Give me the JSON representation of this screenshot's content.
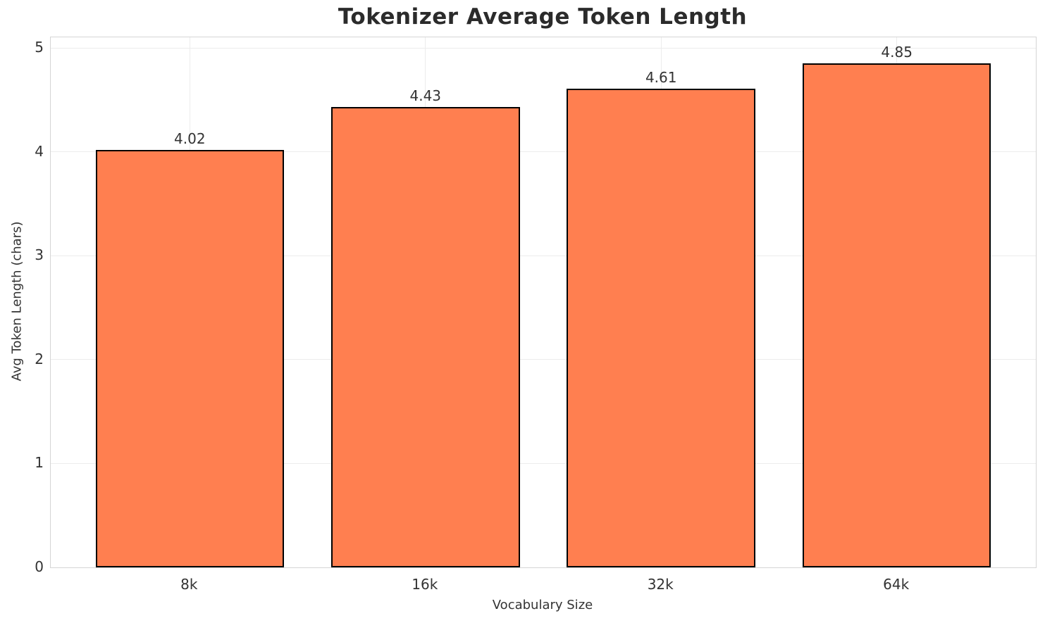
{
  "chart_data": {
    "type": "bar",
    "title": "Tokenizer Average Token Length",
    "xlabel": "Vocabulary Size",
    "ylabel": "Avg Token Length (chars)",
    "categories": [
      "8k",
      "16k",
      "32k",
      "64k"
    ],
    "values": [
      4.02,
      4.43,
      4.61,
      4.85
    ],
    "bar_labels": [
      "4.02",
      "4.43",
      "4.61",
      "4.85"
    ],
    "yticks": [
      "0",
      "1",
      "2",
      "3",
      "4",
      "5"
    ],
    "ytick_values": [
      0,
      1,
      2,
      3,
      4,
      5
    ],
    "ylim": [
      0,
      5.102
    ],
    "grid": true,
    "legend": null,
    "colors": {
      "bar_fill": "#FF7F50",
      "bar_edge": "#000000",
      "grid": "#ececec",
      "spine": "#d5d5d5",
      "text": "#333333",
      "title_text": "#2b2b2b",
      "background": "#ffffff"
    }
  }
}
